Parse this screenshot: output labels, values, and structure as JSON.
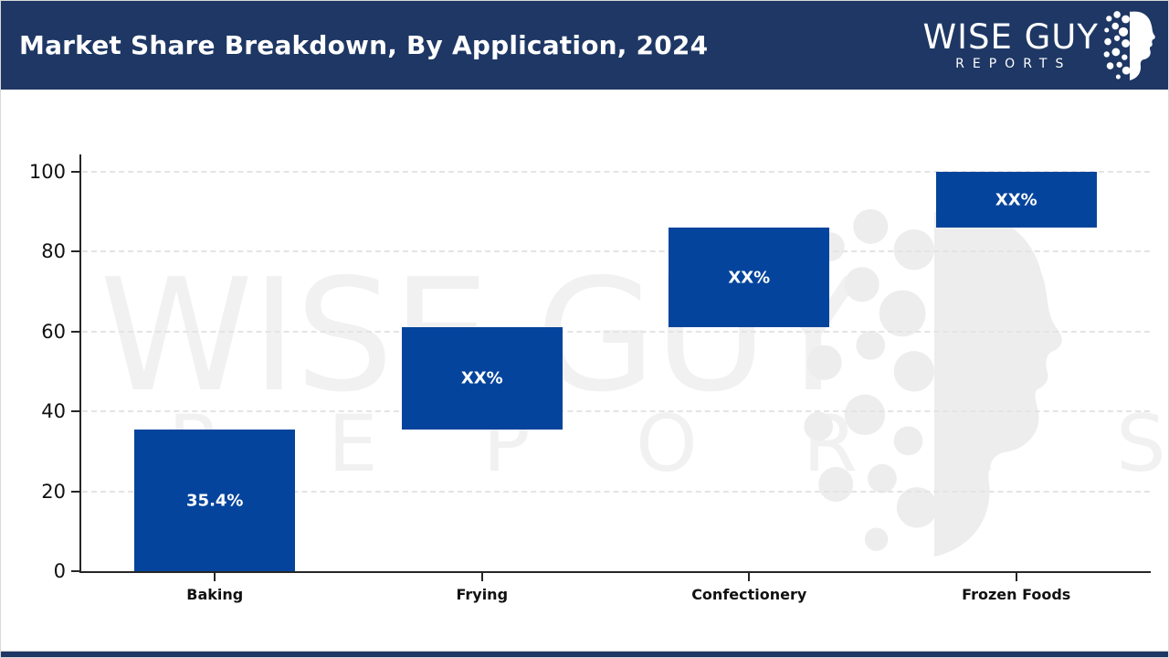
{
  "header": {
    "title": "Market Share Breakdown, By Application, 2024",
    "bg_color": "#1e3764",
    "logo": {
      "line1": "WISE GUY",
      "line2": "REPORTS"
    }
  },
  "watermark": {
    "line1": "WISE GUY",
    "line2": "R E P O R T S",
    "color": "#f1f1f1"
  },
  "chart_data": {
    "type": "bar",
    "variant": "waterfall",
    "title": "Market Share Breakdown, By Application, 2024",
    "categories": [
      "Baking",
      "Frying",
      "Confectionery",
      "Frozen Foods"
    ],
    "segments": [
      {
        "category": "Baking",
        "start": 0,
        "end": 35.4,
        "label": "35.4%"
      },
      {
        "category": "Frying",
        "start": 35.4,
        "end": 61,
        "label": "XX%"
      },
      {
        "category": "Confectionery",
        "start": 61,
        "end": 86,
        "label": "XX%"
      },
      {
        "category": "Frozen Foods",
        "start": 86,
        "end": 100,
        "label": "XX%"
      }
    ],
    "xlabel": "",
    "ylabel": "",
    "ylim": [
      0,
      100
    ],
    "yticks": [
      0,
      20,
      40,
      60,
      80,
      100
    ],
    "grid": "horizontal dashed",
    "legend": "none",
    "bar_color": "#05449c",
    "bar_label_color": "#ffffff",
    "axis_color": "#262626"
  },
  "footer": {
    "bg_color": "#1e3764"
  }
}
